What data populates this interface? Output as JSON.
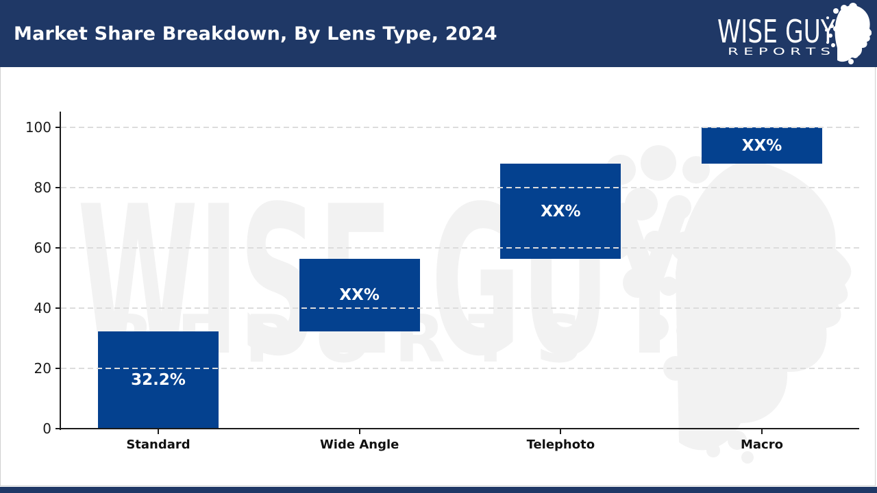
{
  "header": {
    "title": "Market Share Breakdown, By Lens Type, 2024",
    "logo": {
      "line1": "WISE GUY",
      "line2": "R E P O R T S"
    }
  },
  "watermark": {
    "line1": "WISE GUY",
    "line2": "R E P O R T S"
  },
  "chart_data": {
    "type": "bar",
    "subtype": "waterfall",
    "title": "Market Share Breakdown, By Lens Type, 2024",
    "categories": [
      "Standard",
      "Wide Angle",
      "Telephoto",
      "Macro"
    ],
    "bars": [
      {
        "category": "Standard",
        "start": 0,
        "end": 32.2,
        "label": "32.2%"
      },
      {
        "category": "Wide Angle",
        "start": 32.2,
        "end": 56.3,
        "label": "XX%"
      },
      {
        "category": "Telephoto",
        "start": 56.3,
        "end": 87.9,
        "label": "XX%"
      },
      {
        "category": "Macro",
        "start": 87.9,
        "end": 100,
        "label": "XX%"
      }
    ],
    "xlabel": "",
    "ylabel": "",
    "y_ticks": [
      0,
      20,
      40,
      60,
      80,
      100
    ],
    "ylim": [
      0,
      105
    ],
    "grid": "horizontal dashed",
    "legend": "none",
    "bar_color": "#04418F",
    "bar_label_color": "#FFFFFF"
  },
  "colors": {
    "header_bg": "#1F3866",
    "footer_bg": "#1F3866",
    "bar_blue": "#04418F",
    "gridline": "#DCDCDC",
    "axis": "#1A1A1A",
    "canvas_border": "#D0D0D0",
    "watermark_gray": "#F2F2F2",
    "title_text": "#FFFFFF"
  }
}
